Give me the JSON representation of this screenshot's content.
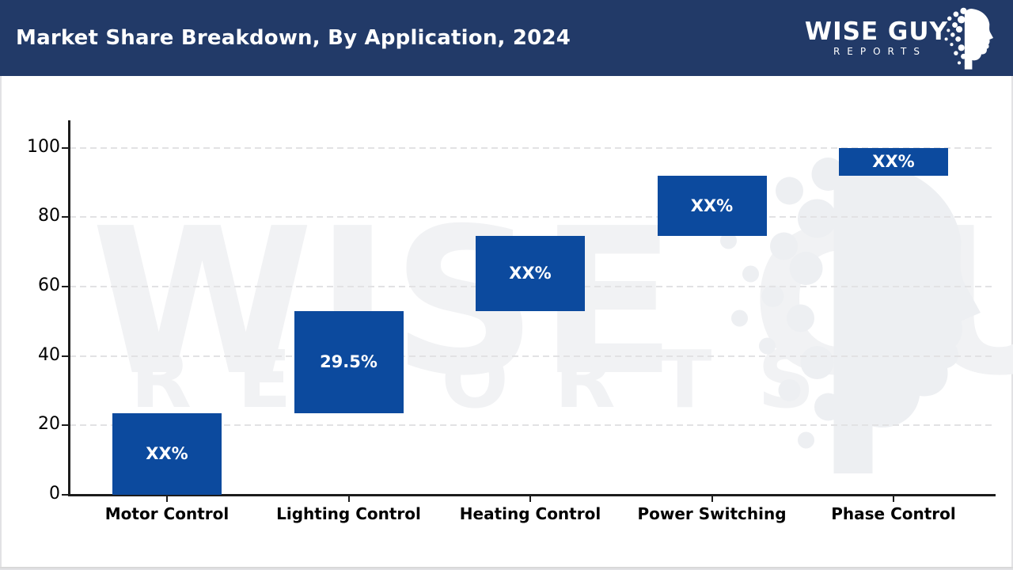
{
  "header": {
    "title": "Market Share Breakdown, By Application, 2024",
    "logo": {
      "line1": "WISE GUY",
      "line2": "REPORTS"
    }
  },
  "watermark": {
    "line1": "WISE GUY",
    "line2": "REPORTS"
  },
  "colors": {
    "header_bg": "#223a68",
    "bar": "#0c4a9e",
    "bar_label": "#ffffff",
    "grid": "#e2e2e4",
    "axis": "#1c1c1c",
    "watermark": "#f1f2f4"
  },
  "chart_data": {
    "type": "bar",
    "subtype": "floating-waterfall",
    "title": "Market Share Breakdown, By Application, 2024",
    "categories": [
      "Motor Control",
      "Lighting Control",
      "Heating Control",
      "Power Switching",
      "Phase Control"
    ],
    "segments": [
      {
        "category": "Motor Control",
        "start": 0,
        "end": 23.5,
        "label": "XX%"
      },
      {
        "category": "Lighting Control",
        "start": 23.5,
        "end": 53,
        "label": "29.5%"
      },
      {
        "category": "Heating Control",
        "start": 53,
        "end": 74.5,
        "label": "XX%"
      },
      {
        "category": "Power Switching",
        "start": 74.5,
        "end": 92,
        "label": "XX%"
      },
      {
        "category": "Phase Control",
        "start": 92,
        "end": 100,
        "label": "XX%"
      }
    ],
    "yticks": [
      0,
      20,
      40,
      60,
      80,
      100
    ],
    "ylim": [
      0,
      105
    ],
    "xlabel": "",
    "ylabel": "",
    "grid": "horizontal-dashed",
    "legend": "none"
  }
}
